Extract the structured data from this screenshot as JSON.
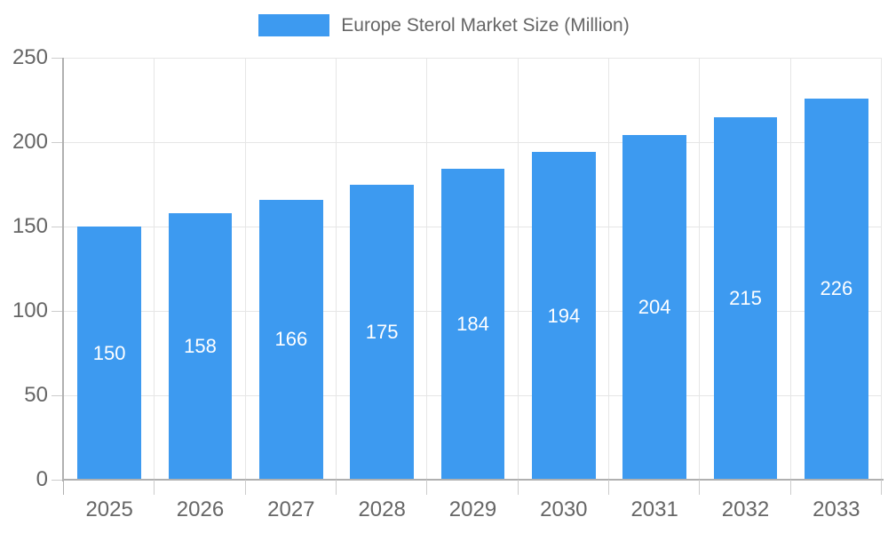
{
  "legend": {
    "series_label": "Europe Sterol Market Size (Million)"
  },
  "colors": {
    "bar": "#3D9AF0",
    "bar_value_text": "#ffffff",
    "axis_line": "#b0b0b0",
    "grid_line": "#e6e6e6",
    "tick_mark": "#cccccc",
    "tick_text": "#666666",
    "background": "#ffffff"
  },
  "chart_data": {
    "type": "bar",
    "title": "Europe Sterol Market Size (Million)",
    "categories": [
      "2025",
      "2026",
      "2027",
      "2028",
      "2029",
      "2030",
      "2031",
      "2032",
      "2033"
    ],
    "values": [
      150,
      158,
      166,
      175,
      184,
      194,
      204,
      215,
      226
    ],
    "xlabel": "",
    "ylabel": "",
    "ylim": [
      0,
      250
    ],
    "yticks": [
      0,
      50,
      100,
      150,
      200,
      250
    ],
    "grid": true,
    "legend_position": "top-center",
    "value_labels": "inside-center",
    "bar_width_fraction": 0.7
  }
}
